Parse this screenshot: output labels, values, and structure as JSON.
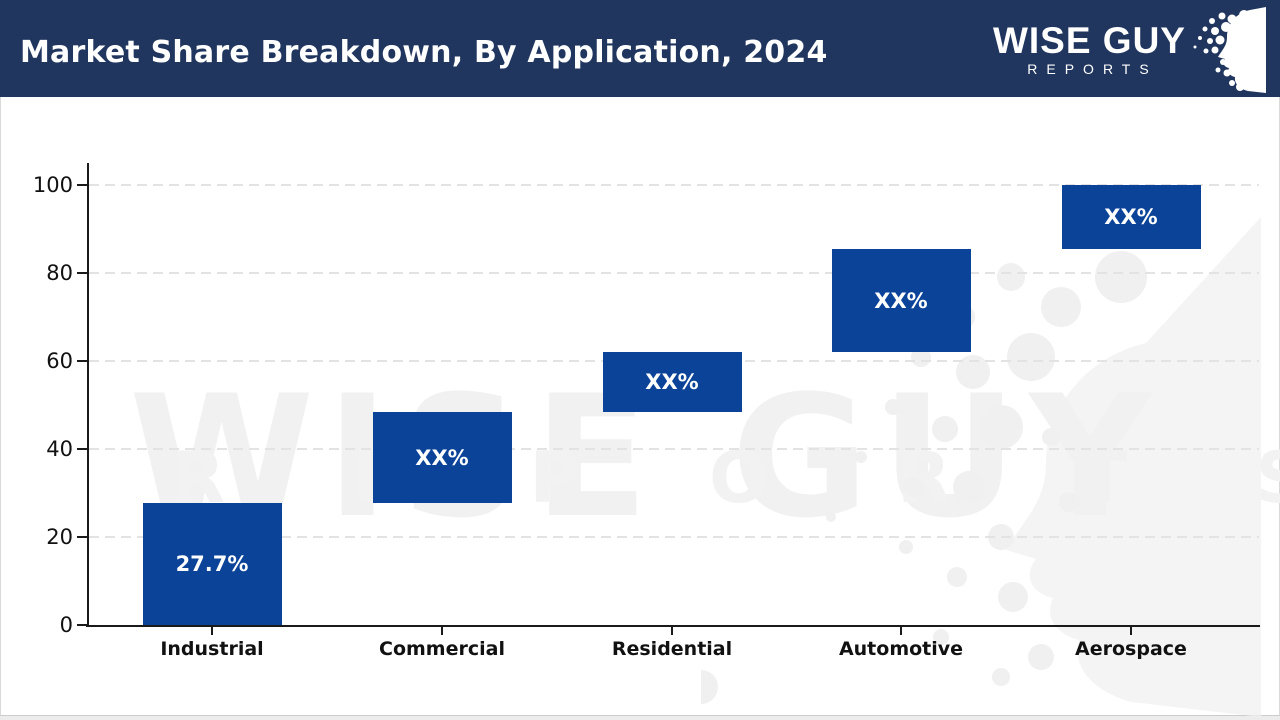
{
  "header": {
    "title": "Market Share Breakdown, By Application, 2024",
    "logo": {
      "line1": "WISE GUY",
      "line2": "REPORTS"
    }
  },
  "watermark": {
    "line1": "WISE GUY",
    "line2": "REPORTS"
  },
  "colors": {
    "header_bg": "#20365f",
    "bar_color": "#0b4398",
    "gridline": "#e3e3e3",
    "axis": "#1a1a1a",
    "watermark": "#f1f1f1"
  },
  "chart_data": {
    "type": "bar",
    "subtype": "waterfall",
    "title": "Market Share Breakdown, By Application, 2024",
    "categories": [
      "Industrial",
      "Commercial",
      "Residential",
      "Automotive",
      "Aerospace"
    ],
    "bars": [
      {
        "category": "Industrial",
        "start": 0,
        "end": 27.7,
        "label": "27.7%"
      },
      {
        "category": "Commercial",
        "start": 27.7,
        "end": 48.3,
        "label": "XX%"
      },
      {
        "category": "Residential",
        "start": 48.3,
        "end": 62.0,
        "label": "XX%"
      },
      {
        "category": "Automotive",
        "start": 62.0,
        "end": 85.4,
        "label": "XX%"
      },
      {
        "category": "Aerospace",
        "start": 85.4,
        "end": 100.0,
        "label": "XX%"
      }
    ],
    "values_increment": [
      27.7,
      20.6,
      13.7,
      23.4,
      14.6
    ],
    "yticks": [
      0,
      20,
      40,
      60,
      80,
      100
    ],
    "ylim": [
      0,
      100
    ],
    "xlabel": "",
    "ylabel": "",
    "bar_color": "#0b4398",
    "grid": "horizontal-dashed",
    "legend": "none"
  }
}
